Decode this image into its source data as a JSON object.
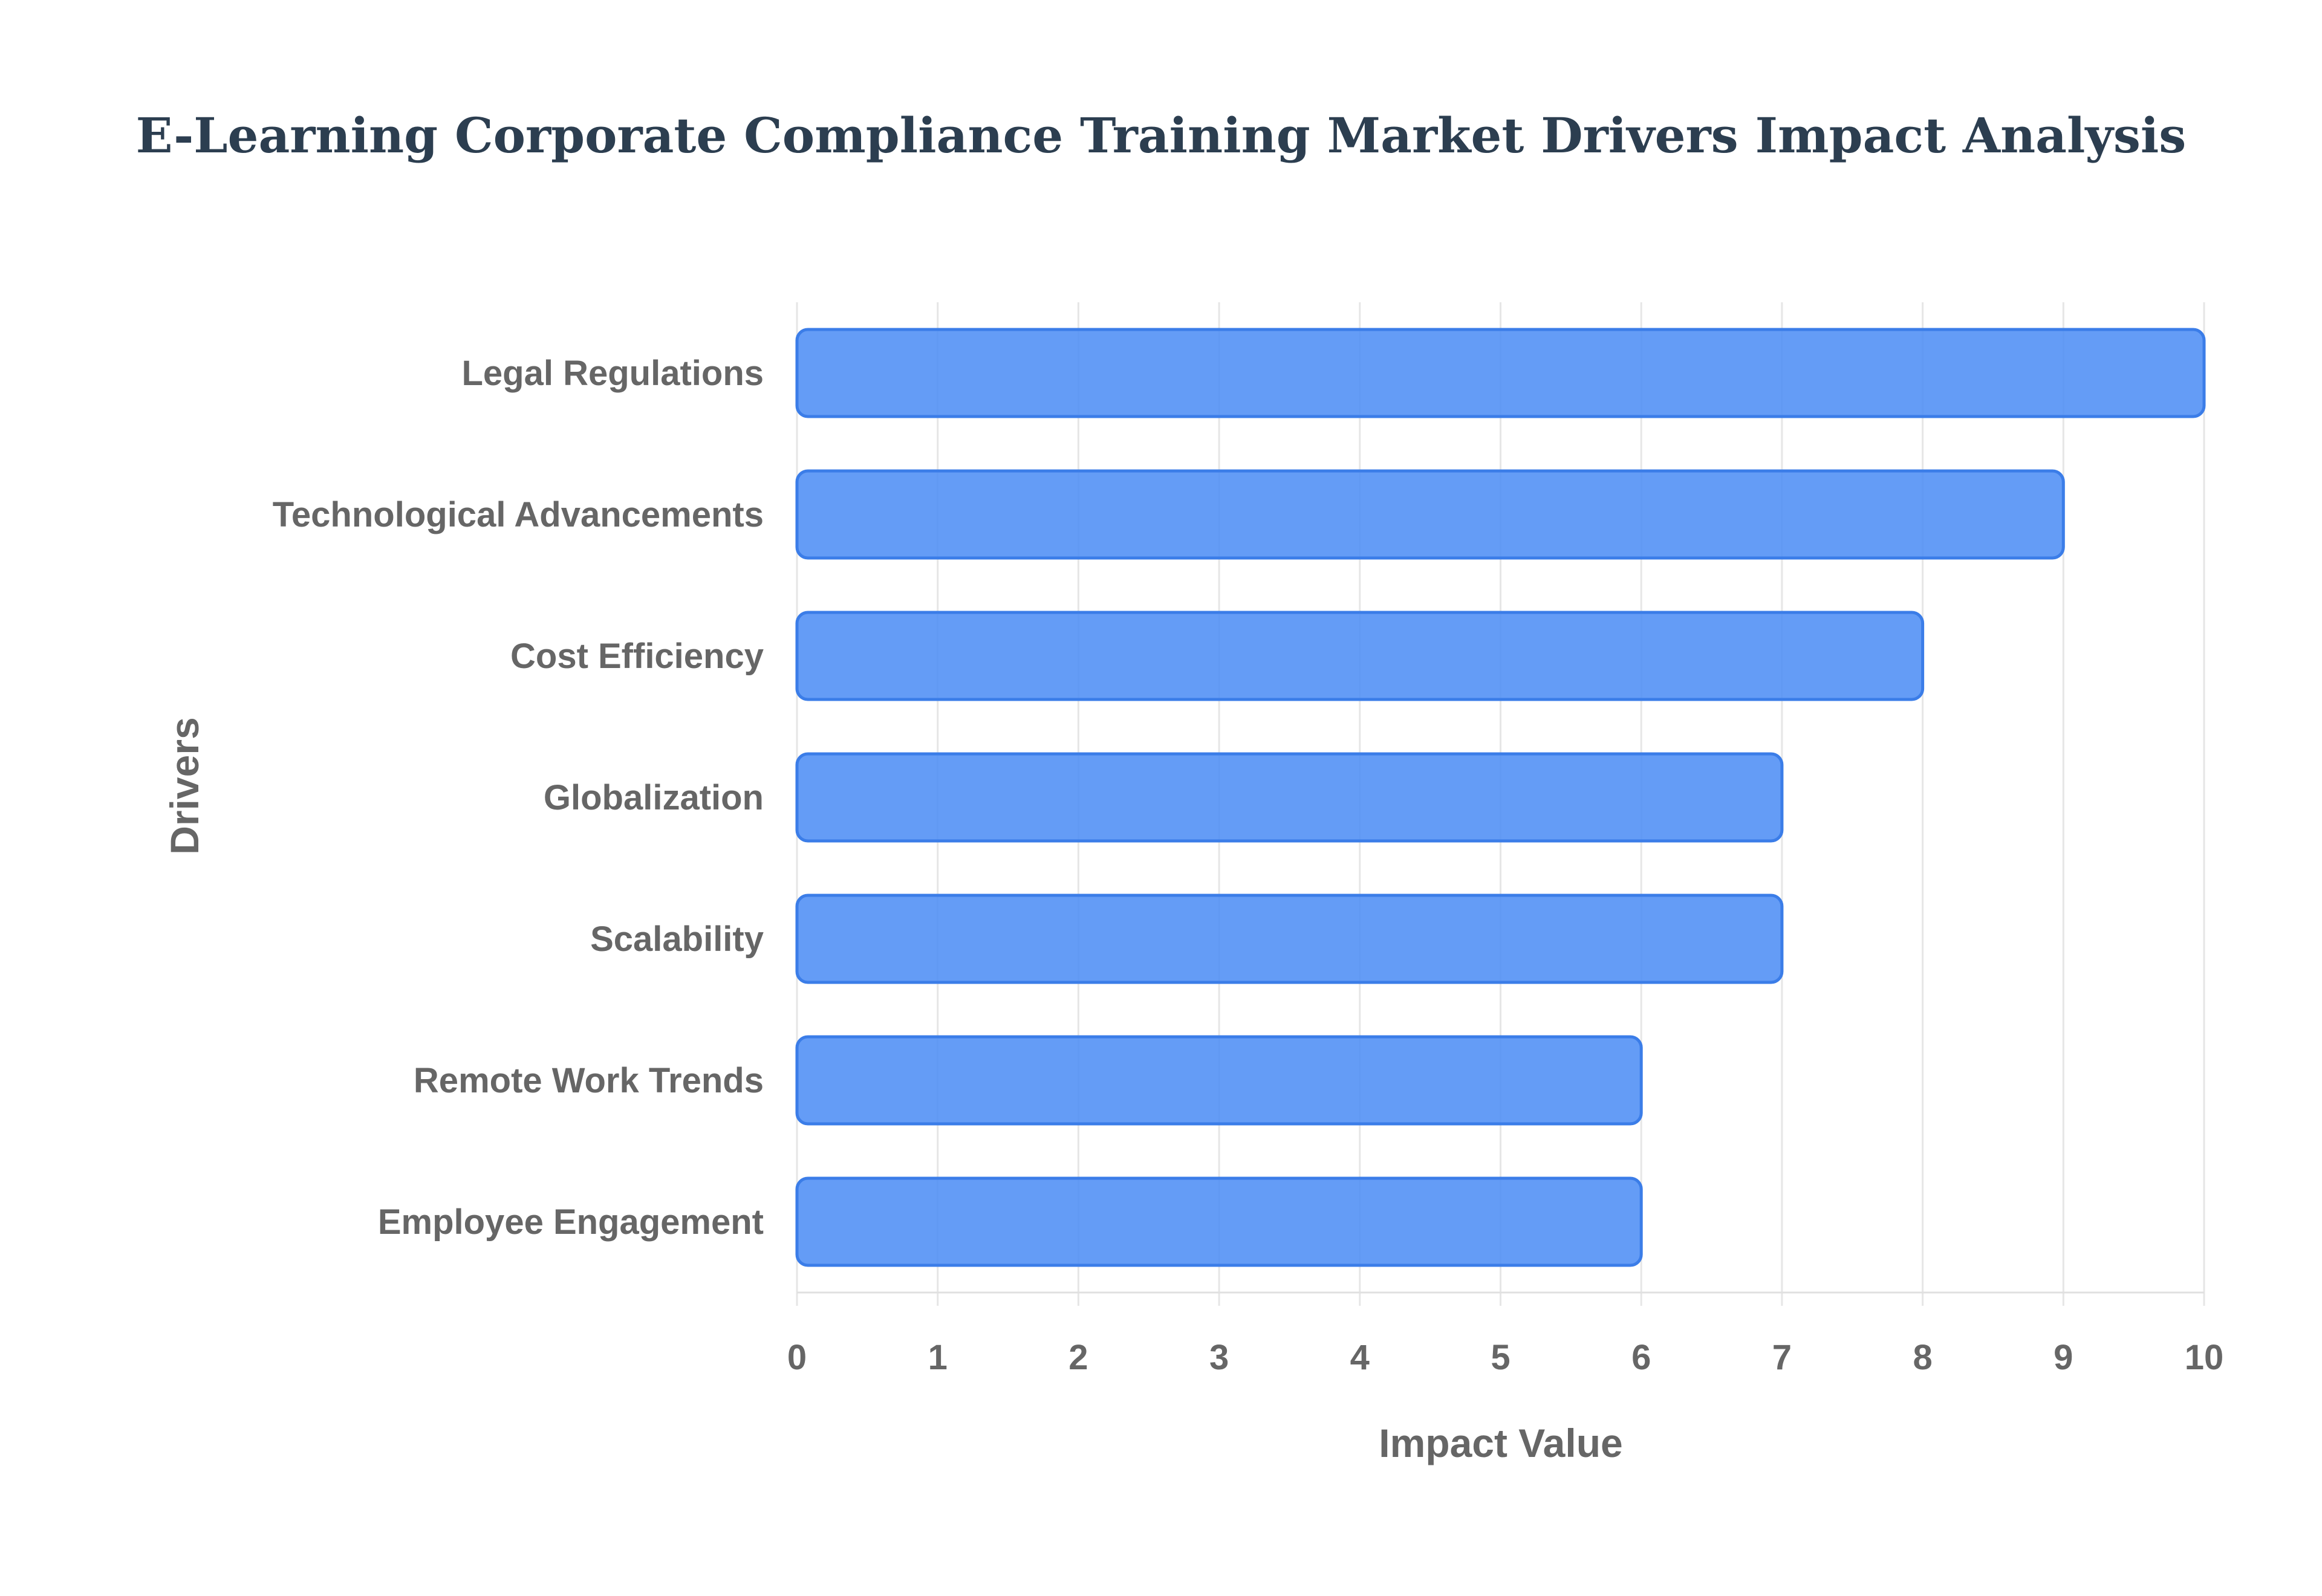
{
  "chart_data": {
    "type": "bar",
    "orientation": "horizontal",
    "title": "E-Learning Corporate Compliance Training Market Drivers Impact Analysis",
    "xlabel": "Impact Value",
    "ylabel": "Drivers",
    "categories": [
      "Legal Regulations",
      "Technological Advancements",
      "Cost Efficiency",
      "Globalization",
      "Scalability",
      "Remote Work Trends",
      "Employee Engagement"
    ],
    "values": [
      10,
      9,
      8,
      7,
      7,
      6,
      6
    ],
    "xlim": [
      0,
      10
    ],
    "xticks": [
      "0",
      "1",
      "2",
      "3",
      "4",
      "5",
      "6",
      "7",
      "8",
      "9",
      "10"
    ],
    "grid": "vertical",
    "legend": "none",
    "colors": {
      "bar_fill": "#4f8ef5",
      "bar_border": "#3b7de8",
      "title": "#2c3e50",
      "labels": "#666666",
      "grid": "#e6e6e6"
    }
  }
}
